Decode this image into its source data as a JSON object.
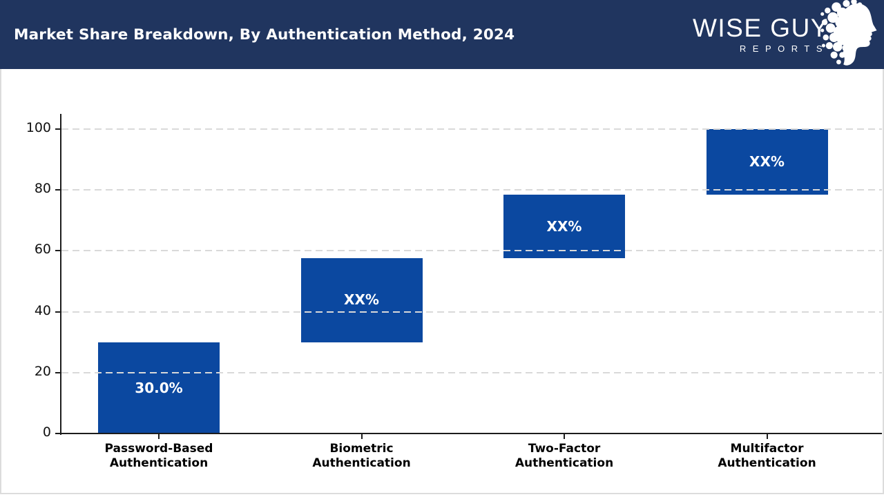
{
  "header": {
    "title": "Market Share Breakdown, By Authentication Method, 2024",
    "logo": {
      "name_line": "WISE GUY",
      "sub_line": "REPORTS"
    }
  },
  "watermark": {
    "name_line": "WISE GUY",
    "sub_line": "REPORTS"
  },
  "chart_data": {
    "type": "bar",
    "variant": "waterfall",
    "title": "Market Share Breakdown, By Authentication Method, 2024",
    "categories": [
      [
        "Password-Based",
        "Authentication"
      ],
      [
        "Biometric",
        "Authentication"
      ],
      [
        "Two-Factor",
        "Authentication"
      ],
      [
        "Multifactor",
        "Authentication"
      ]
    ],
    "segments": [
      {
        "category": "Password-Based Authentication",
        "start": 0,
        "end": 30,
        "label": "30.0%"
      },
      {
        "category": "Biometric Authentication",
        "start": 30,
        "end": 57.5,
        "label": "XX%"
      },
      {
        "category": "Two-Factor Authentication",
        "start": 57.5,
        "end": 78.5,
        "label": "XX%"
      },
      {
        "category": "Multifactor Authentication",
        "start": 78.5,
        "end": 100,
        "label": "XX%"
      }
    ],
    "yticks": [
      0,
      20,
      40,
      60,
      80,
      100
    ],
    "ylim": [
      0,
      105
    ],
    "xlabel": "",
    "ylabel": "",
    "grid": "horizontal-dashed",
    "legend": false,
    "bar_color": "#0b48a0",
    "bar_label_color": "#ffffff",
    "axis_color": "#1c1c1c",
    "gridline_color": "#d9d9d9"
  },
  "colors": {
    "header_bg": "#20355f",
    "header_text": "#ffffff",
    "watermark": "#f2f2f4",
    "chart_border": "#dcdcdc",
    "bar_blue": "#0b48a0"
  }
}
